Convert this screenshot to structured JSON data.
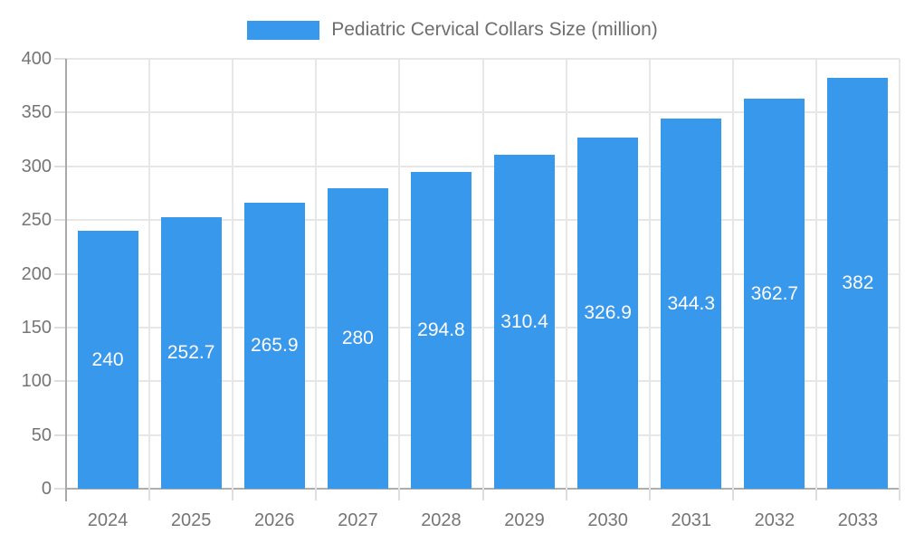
{
  "legend": {
    "label": "Pediatric Cervical Collars Size (million)"
  },
  "chart_data": {
    "type": "bar",
    "title": "Pediatric Cervical Collars Size (million)",
    "legend_position": "top-center",
    "grid": true,
    "categories": [
      "2024",
      "2025",
      "2026",
      "2027",
      "2028",
      "2029",
      "2030",
      "2031",
      "2032",
      "2033"
    ],
    "values": [
      240,
      252.7,
      265.9,
      280,
      294.8,
      310.4,
      326.9,
      344.3,
      362.7,
      382
    ],
    "value_labels": [
      "240",
      "252.7",
      "265.9",
      "280",
      "294.8",
      "310.4",
      "326.9",
      "344.3",
      "362.7",
      "382"
    ],
    "xlabel": "",
    "ylabel": "",
    "ylim": [
      0,
      400
    ],
    "ytick_step": 50,
    "ytick_labels": [
      "0",
      "50",
      "100",
      "150",
      "200",
      "250",
      "300",
      "350",
      "400"
    ],
    "colors": {
      "bar": "#3898ec",
      "value_label": "#ffffff",
      "tick_label": "#757575",
      "legend_label": "#6e6e6e",
      "gridline": "#e7e7e7",
      "axis_line": "#aaaaaa",
      "background": "#ffffff"
    }
  }
}
